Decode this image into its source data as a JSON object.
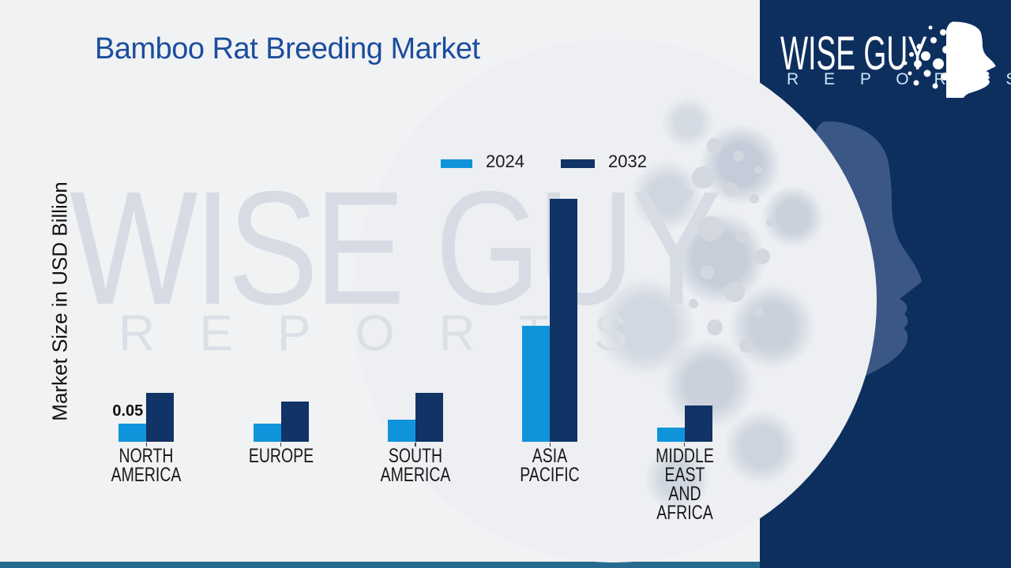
{
  "title": {
    "text": "Bamboo Rat Breeding Market",
    "color": "#1b4d9e"
  },
  "y_axis": {
    "label": "Market Size in USD Billion"
  },
  "legend": {
    "items": [
      {
        "label": "2024",
        "color": "#0f94dc"
      },
      {
        "label": "2032",
        "color": "#113365"
      }
    ]
  },
  "watermark": {
    "line1": "WISE GUY",
    "line2": "REPORTS"
  },
  "brand": {
    "name_line1": "WISE GUY",
    "name_line2": "R E P O R T S",
    "panel_color": "#0d2f5e",
    "face_color": "#3b5786",
    "footer_color": "#276a90"
  },
  "chart_data": {
    "type": "bar",
    "categories": [
      "NORTH AMERICA",
      "EUROPE",
      "SOUTH AMERICA",
      "ASIA PACIFIC",
      "MIDDLE EAST AND AFRICA"
    ],
    "series": [
      {
        "name": "2024",
        "color": "#0f94dc",
        "values": [
          0.05,
          0.05,
          0.06,
          0.32,
          0.04
        ]
      },
      {
        "name": "2032",
        "color": "#113365",
        "values": [
          0.135,
          0.11,
          0.135,
          0.67,
          0.1
        ]
      }
    ],
    "title": "Bamboo Rat Breeding Market",
    "xlabel": "",
    "ylabel": "Market Size in USD Billion",
    "ylim": [
      0,
      0.7
    ],
    "grid": false,
    "legend_position": "top",
    "data_labels": [
      {
        "series": "2024",
        "category_index": 0,
        "text": "0.05"
      }
    ]
  }
}
